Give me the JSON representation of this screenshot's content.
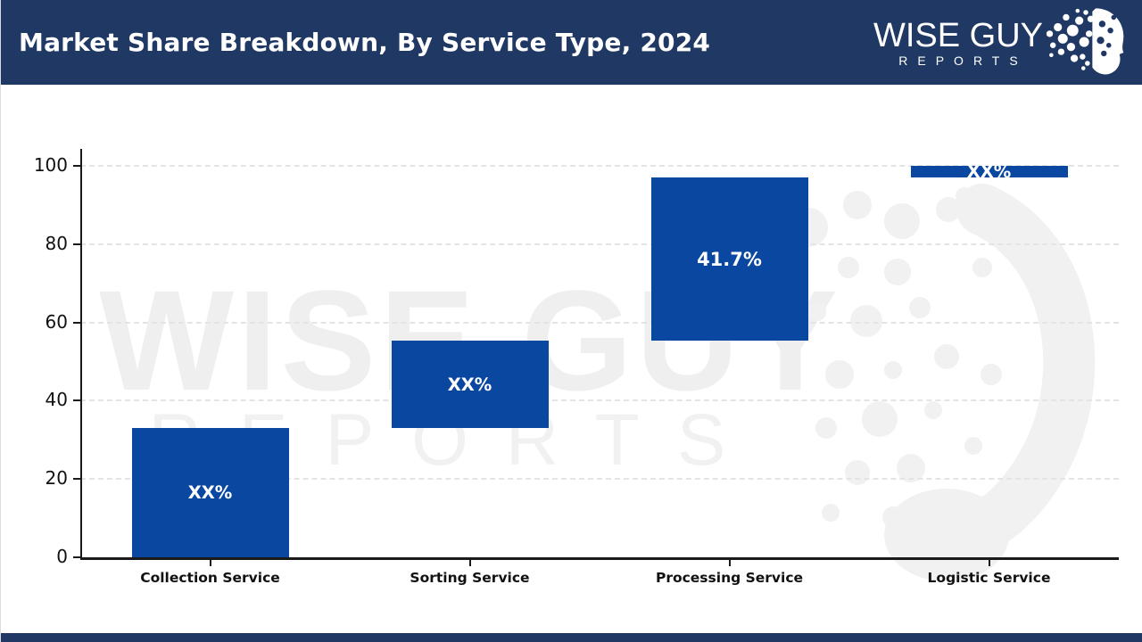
{
  "header": {
    "title": "Market Share Breakdown, By Service Type, 2024",
    "logo": {
      "line1": "WISE GUY",
      "line2": "REPORTS"
    }
  },
  "watermark": {
    "line1": "WISE GUY",
    "line2": "REPORTS"
  },
  "colors": {
    "header_bg": "#203864",
    "footer_bg": "#203864",
    "bar": "#0a47a0",
    "bar_label": "#ffffff",
    "gridline": "#e4e4e4",
    "axis": "#1a1a1a",
    "watermark": "#efefef"
  },
  "chart_data": {
    "type": "bar",
    "subtype": "waterfall",
    "title": "Market Share Breakdown, By Service Type, 2024",
    "categories": [
      "Collection Service",
      "Sorting Service",
      "Processing Service",
      "Logistic Service"
    ],
    "values": [
      33.0,
      22.3,
      41.7,
      3.0
    ],
    "cumulative_start": [
      0,
      33.0,
      55.3,
      97.0
    ],
    "cumulative_end": [
      33.0,
      55.3,
      97.0,
      100.0
    ],
    "bar_labels": [
      "XX%",
      "XX%",
      "41.7%",
      "XX%"
    ],
    "xlabel": "",
    "ylabel": "",
    "yticks": [
      0,
      20,
      40,
      60,
      80,
      100
    ],
    "ylim": [
      0,
      104
    ],
    "grid": "horizontal-dashed",
    "legend": "none"
  }
}
